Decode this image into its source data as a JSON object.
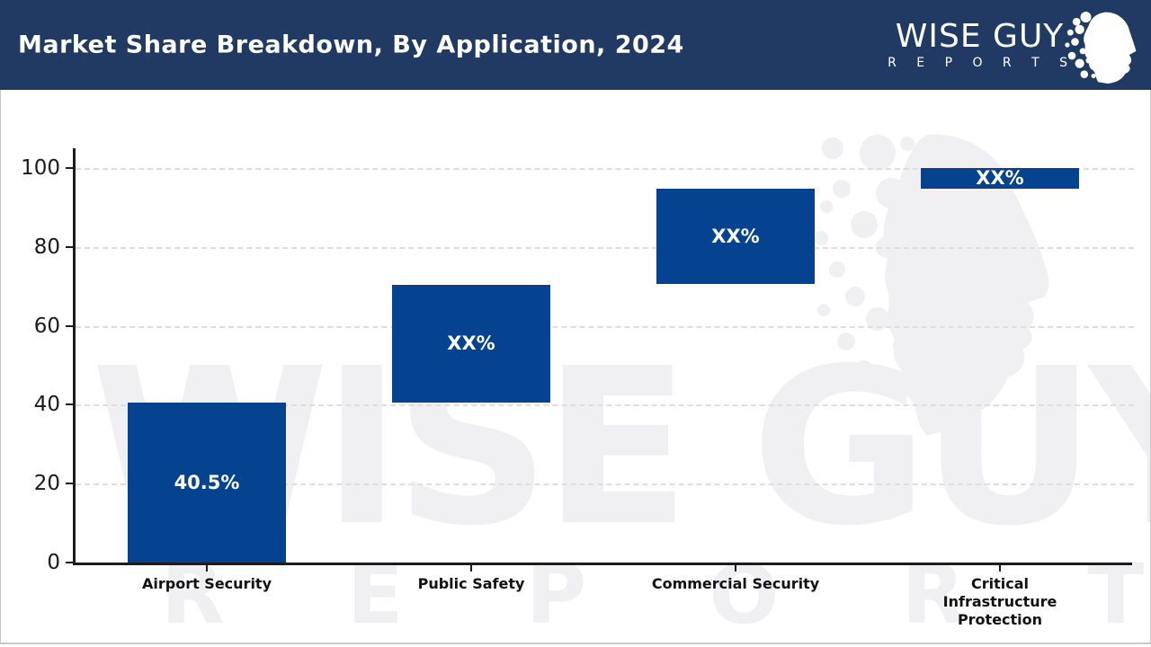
{
  "header": {
    "title": "Market Share Breakdown, By Application, 2024",
    "bg_color": "#213a64",
    "logo": {
      "primary": "WISE GUY",
      "secondary": "R E P O R T S",
      "face_icon": "dotted-head-profile"
    }
  },
  "watermark": {
    "line1": "WISE GUY",
    "line2": "R E P O R T S",
    "color": "#f0f0f2"
  },
  "chart_data": {
    "type": "bar",
    "subtype": "waterfall",
    "title": "Market Share Breakdown, By Application, 2024",
    "categories": [
      "Airport Security",
      "Public Safety",
      "Commercial Security",
      "Critical Infrastructure Protection"
    ],
    "segments": [
      {
        "category": "Airport Security",
        "label": "40.5%",
        "start": 0,
        "end": 40.5
      },
      {
        "category": "Public Safety",
        "label": "XX%",
        "start": 40.5,
        "end": 70.5
      },
      {
        "category": "Commercial Security",
        "label": "XX%",
        "start": 70.5,
        "end": 94.8
      },
      {
        "category": "Critical Infrastructure Protection",
        "label": "XX%",
        "start": 94.8,
        "end": 100
      }
    ],
    "ylim": [
      0,
      100
    ],
    "yticks": [
      0,
      20,
      40,
      60,
      80,
      100
    ],
    "grid": "horizontal-dashed",
    "legend": "none",
    "bar_color": "#05428f",
    "bar_label_color": "#ffffff",
    "axis_color": "#1c1c1c",
    "grid_color": "#dedede"
  }
}
